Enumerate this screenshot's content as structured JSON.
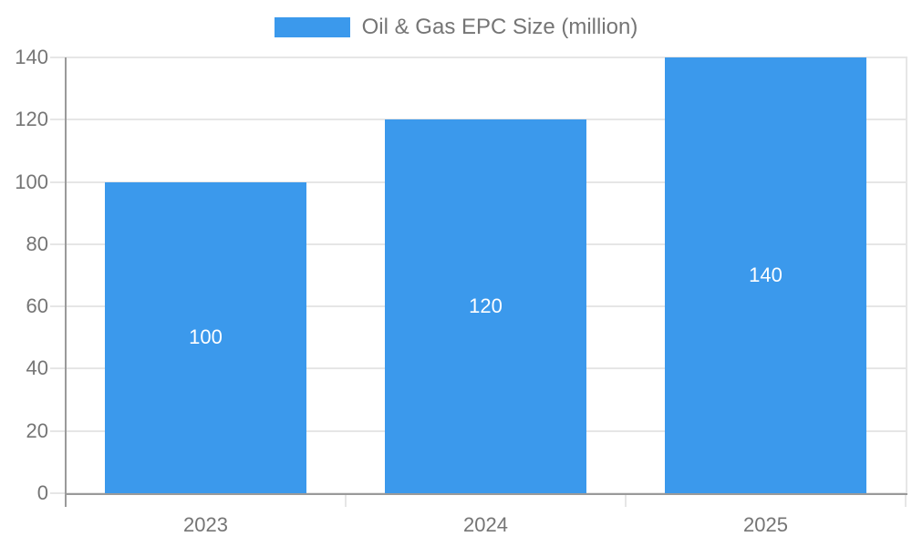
{
  "legend": {
    "label": "Oil & Gas EPC Size (million)"
  },
  "chart_data": {
    "type": "bar",
    "title": "",
    "xlabel": "",
    "ylabel": "",
    "categories": [
      "2023",
      "2024",
      "2025"
    ],
    "series": [
      {
        "name": "Oil & Gas EPC Size (million)",
        "values": [
          100,
          120,
          140
        ]
      }
    ],
    "bar_value_labels": [
      "100",
      "120",
      "140"
    ],
    "ylim": [
      0,
      140
    ],
    "ytick_step": 20,
    "yticks": [
      0,
      20,
      40,
      60,
      80,
      100,
      120,
      140
    ],
    "grid": true,
    "legend_position": "top-center",
    "colors": {
      "bar": "#3B99EC",
      "grid": "#e6e6e6",
      "axis": "#9a9a9a",
      "text": "#757575",
      "value_label": "#ffffff",
      "background": "#ffffff"
    }
  }
}
